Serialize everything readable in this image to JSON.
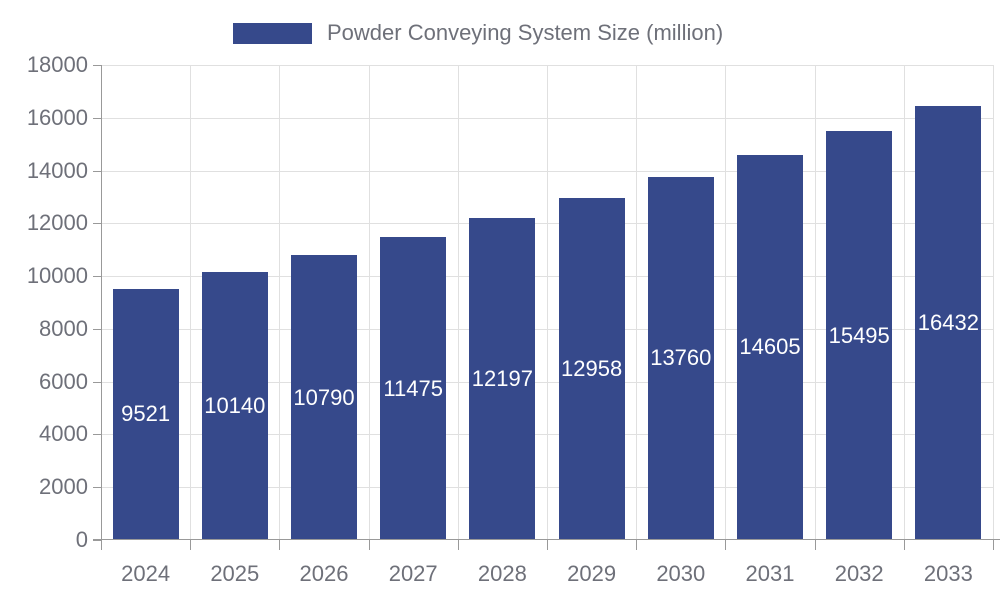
{
  "legend": {
    "label": "Powder Conveying System Size (million)"
  },
  "chart_data": {
    "type": "bar",
    "title": "Powder Conveying System Size (million)",
    "series_name": "Powder Conveying System Size (million)",
    "categories": [
      "2024",
      "2025",
      "2026",
      "2027",
      "2028",
      "2029",
      "2030",
      "2031",
      "2032",
      "2033"
    ],
    "values": [
      9521,
      10140,
      10790,
      11475,
      12197,
      12958,
      13760,
      14605,
      15495,
      16432
    ],
    "xlabel": "",
    "ylabel": "",
    "ylim": [
      0,
      18000
    ],
    "ytick_step": 2000,
    "grid": true,
    "legend_position": "top",
    "bar_color": "#36498B",
    "value_label_color": "#FFFFFF",
    "axis_text_color": "#6E7079",
    "gridline_color": "#E0E0E0",
    "axis_line_color": "#999999",
    "background_color": "#FFFFFF"
  }
}
